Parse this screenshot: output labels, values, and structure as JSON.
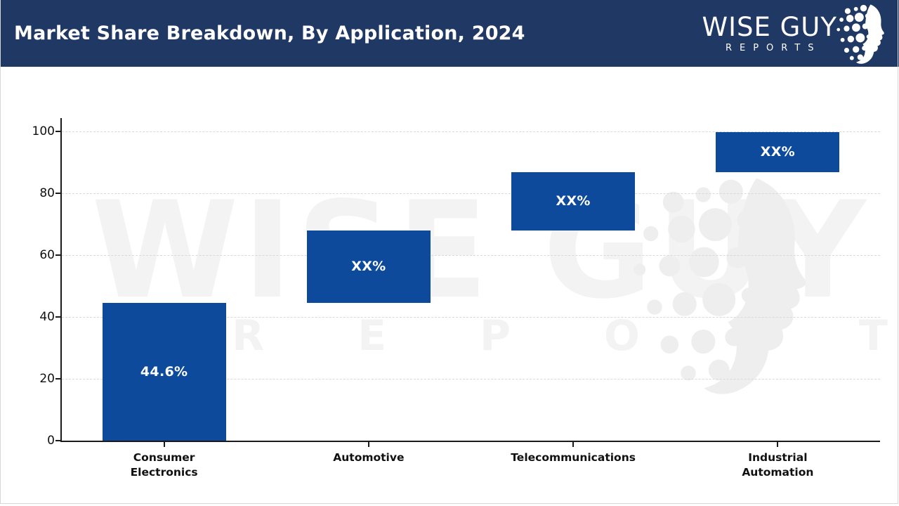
{
  "header": {
    "title": "Market Share Breakdown, By Application, 2024",
    "bg_color": "#1F3864",
    "logo": {
      "line1": "WISE GUY",
      "line2": "REPORTS",
      "icon": "dotted-head-profile"
    }
  },
  "watermark": {
    "line1": "WISE GUY",
    "line2": "REPORTS",
    "icon": "dotted-head-profile"
  },
  "chart_data": {
    "type": "bar",
    "subtype": "floating-waterfall",
    "title": "Market Share Breakdown, By Application, 2024",
    "categories": [
      "Consumer Electronics",
      "Automotive",
      "Telecommunications",
      "Industrial Automation"
    ],
    "category_lines": [
      [
        "Consumer",
        "Electronics"
      ],
      [
        "Automotive"
      ],
      [
        "Telecommunications"
      ],
      [
        "Industrial",
        "Automation"
      ]
    ],
    "bars": [
      {
        "category": "Consumer Electronics",
        "label": "44.6%",
        "start": 0,
        "end": 44.6
      },
      {
        "category": "Automotive",
        "label": "XX%",
        "start": 44.6,
        "end": 68
      },
      {
        "category": "Telecommunications",
        "label": "XX%",
        "start": 68,
        "end": 86.8
      },
      {
        "category": "Industrial Automation",
        "label": "XX%",
        "start": 86.8,
        "end": 99.8
      }
    ],
    "bar_color": "#0D4A9C",
    "ylim": [
      0,
      100
    ],
    "yticks": [
      0,
      20,
      40,
      60,
      80,
      100
    ],
    "xlabel": "",
    "ylabel": "",
    "grid": {
      "axis": "y",
      "style": "dashed",
      "color": "#d9d9d9"
    },
    "legend": "none"
  }
}
